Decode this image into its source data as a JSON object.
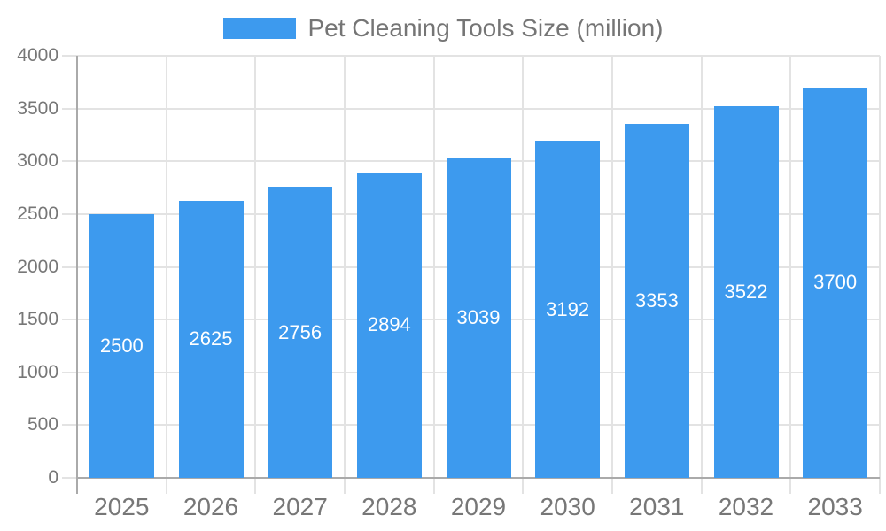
{
  "legend": {
    "label": "Pet Cleaning Tools Size (million)",
    "swatch_color": "#3d9aee"
  },
  "chart_data": {
    "type": "bar",
    "title": "Pet Cleaning Tools Size (million)",
    "categories": [
      "2025",
      "2026",
      "2027",
      "2028",
      "2029",
      "2030",
      "2031",
      "2032",
      "2033"
    ],
    "series": [
      {
        "name": "Pet Cleaning Tools Size (million)",
        "values": [
          2500,
          2625,
          2756,
          2894,
          3039,
          3192,
          3353,
          3522,
          3700
        ]
      }
    ],
    "value_labels_shown": true,
    "xlabel": "",
    "ylabel": "",
    "ylim": [
      0,
      4000
    ],
    "ytick_step": 500,
    "yticks": [
      0,
      500,
      1000,
      1500,
      2000,
      2500,
      3000,
      3500,
      4000
    ],
    "grid": true,
    "legend_position": "top-center"
  },
  "colors": {
    "bar": "#3d9aee",
    "grid": "#e3e3e3",
    "axis": "#aaaaaa",
    "tick_label": "#777777",
    "legend_text": "#757575",
    "value_label": "#ffffff",
    "background": "#ffffff"
  }
}
